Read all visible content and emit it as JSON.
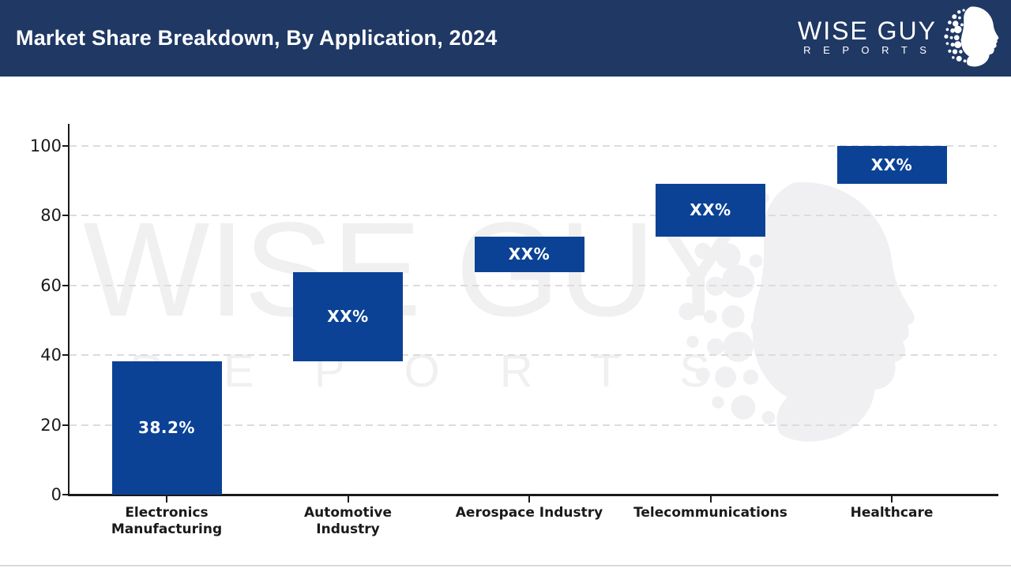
{
  "header": {
    "title": "Market Share Breakdown, By Application, 2024",
    "logo": {
      "line1": "WISE GUY",
      "line2": "R E P O R T S"
    }
  },
  "watermark": {
    "line1": "WISE GUY",
    "line2": "R E P O R T S"
  },
  "colors": {
    "header_bg": "#1f3864",
    "header_text": "#ffffff",
    "bar_fill": "#0b4295",
    "bar_label": "#ffffff",
    "axis": "#1a1a1a",
    "tick_label": "#1a1a1a",
    "gridline": "#dcdcdc",
    "watermark": "#f0f0f1"
  },
  "chart_data": {
    "type": "bar",
    "subtype": "waterfall",
    "title": "Market Share Breakdown, By Application, 2024",
    "unit": "%",
    "categories": [
      "Electronics Manufacturing",
      "Automotive Industry",
      "Aerospace Industry",
      "Telecommunications",
      "Healthcare"
    ],
    "category_lines": [
      [
        "Electronics",
        "Manufacturing"
      ],
      [
        "Automotive",
        "Industry"
      ],
      [
        "Aerospace Industry"
      ],
      [
        "Telecommunications"
      ],
      [
        "Healthcare"
      ]
    ],
    "segments": [
      {
        "category": "Electronics Manufacturing",
        "start": 0,
        "end": 38.2,
        "label": "38.2%"
      },
      {
        "category": "Automotive Industry",
        "start": 38.2,
        "end": 63.8,
        "label": "XX%"
      },
      {
        "category": "Aerospace Industry",
        "start": 63.8,
        "end": 74,
        "label": "XX%"
      },
      {
        "category": "Telecommunications",
        "start": 74,
        "end": 89,
        "label": "XX%"
      },
      {
        "category": "Healthcare",
        "start": 89,
        "end": 100,
        "label": "XX%"
      }
    ],
    "yticks": [
      0,
      20,
      40,
      60,
      80,
      100
    ],
    "ylim": [
      0,
      105
    ],
    "xlabel": "",
    "ylabel": "",
    "grid": "horizontal-dashed",
    "legend": "none"
  }
}
